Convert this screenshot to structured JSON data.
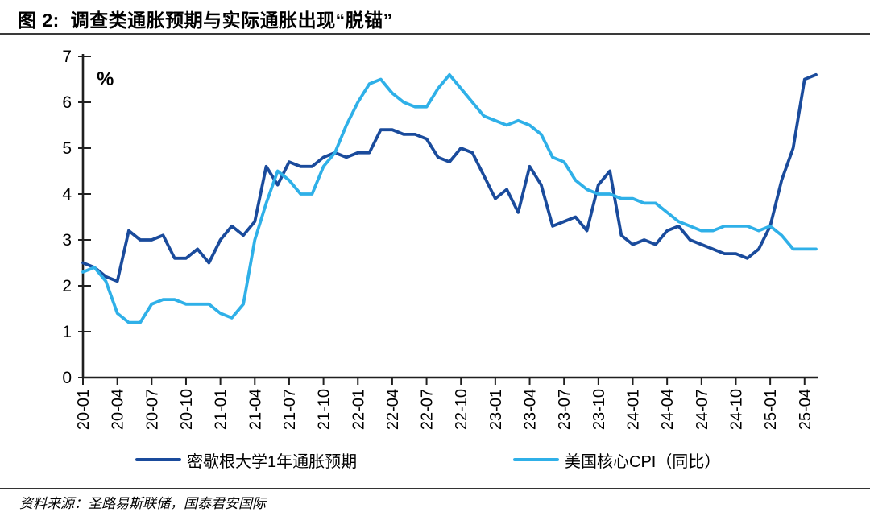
{
  "header": {
    "title": "图 2:  调查类通胀预期与实际通胀出现“脱锚”"
  },
  "chart_data": {
    "type": "line",
    "title": "调查类通胀预期与实际通胀出现“脱锚”",
    "unit_label": "%",
    "ylim": [
      0,
      7
    ],
    "y_ticks": [
      0,
      1,
      2,
      3,
      4,
      5,
      6,
      7
    ],
    "x_start": "2020-01",
    "x_end": "2025-05",
    "x_tick_labels": [
      "20-01",
      "20-04",
      "20-07",
      "20-10",
      "21-01",
      "21-04",
      "21-07",
      "21-10",
      "22-01",
      "22-04",
      "22-07",
      "22-10",
      "23-01",
      "23-04",
      "23-07",
      "23-10",
      "24-01",
      "24-04",
      "24-07",
      "24-10",
      "25-01",
      "25-04"
    ],
    "grid": false,
    "legend_position": "bottom",
    "series": [
      {
        "key": "umich-1y-inflation-expectation",
        "name": "密歇根大学1年通胀预期",
        "color": "#1a4b9c",
        "values": [
          2.5,
          2.4,
          2.2,
          2.1,
          3.2,
          3.0,
          3.0,
          3.1,
          2.6,
          2.6,
          2.8,
          2.5,
          3.0,
          3.3,
          3.1,
          3.4,
          4.6,
          4.2,
          4.7,
          4.6,
          4.6,
          4.8,
          4.9,
          4.8,
          4.9,
          4.9,
          5.4,
          5.4,
          5.3,
          5.3,
          5.2,
          4.8,
          4.7,
          5.0,
          4.9,
          4.4,
          3.9,
          4.1,
          3.6,
          4.6,
          4.2,
          3.3,
          3.4,
          3.5,
          3.2,
          4.2,
          4.5,
          3.1,
          2.9,
          3.0,
          2.9,
          3.2,
          3.3,
          3.0,
          2.9,
          2.8,
          2.7,
          2.7,
          2.6,
          2.8,
          3.3,
          4.3,
          5.0,
          6.5,
          6.6
        ]
      },
      {
        "key": "us-core-cpi-yoy",
        "name": "美国核心CPI（同比）",
        "color": "#2fb0e8",
        "values": [
          2.3,
          2.4,
          2.1,
          1.4,
          1.2,
          1.2,
          1.6,
          1.7,
          1.7,
          1.6,
          1.6,
          1.6,
          1.4,
          1.3,
          1.6,
          3.0,
          3.8,
          4.5,
          4.3,
          4.0,
          4.0,
          4.6,
          4.9,
          5.5,
          6.0,
          6.4,
          6.5,
          6.2,
          6.0,
          5.9,
          5.9,
          6.3,
          6.6,
          6.3,
          6.0,
          5.7,
          5.6,
          5.5,
          5.6,
          5.5,
          5.3,
          4.8,
          4.7,
          4.3,
          4.1,
          4.0,
          4.0,
          3.9,
          3.9,
          3.8,
          3.8,
          3.6,
          3.4,
          3.3,
          3.2,
          3.2,
          3.3,
          3.3,
          3.3,
          3.2,
          3.3,
          3.1,
          2.8,
          2.8,
          2.8
        ]
      }
    ]
  },
  "footer": {
    "source": "资料来源：圣路易斯联储，国泰君安国际"
  }
}
